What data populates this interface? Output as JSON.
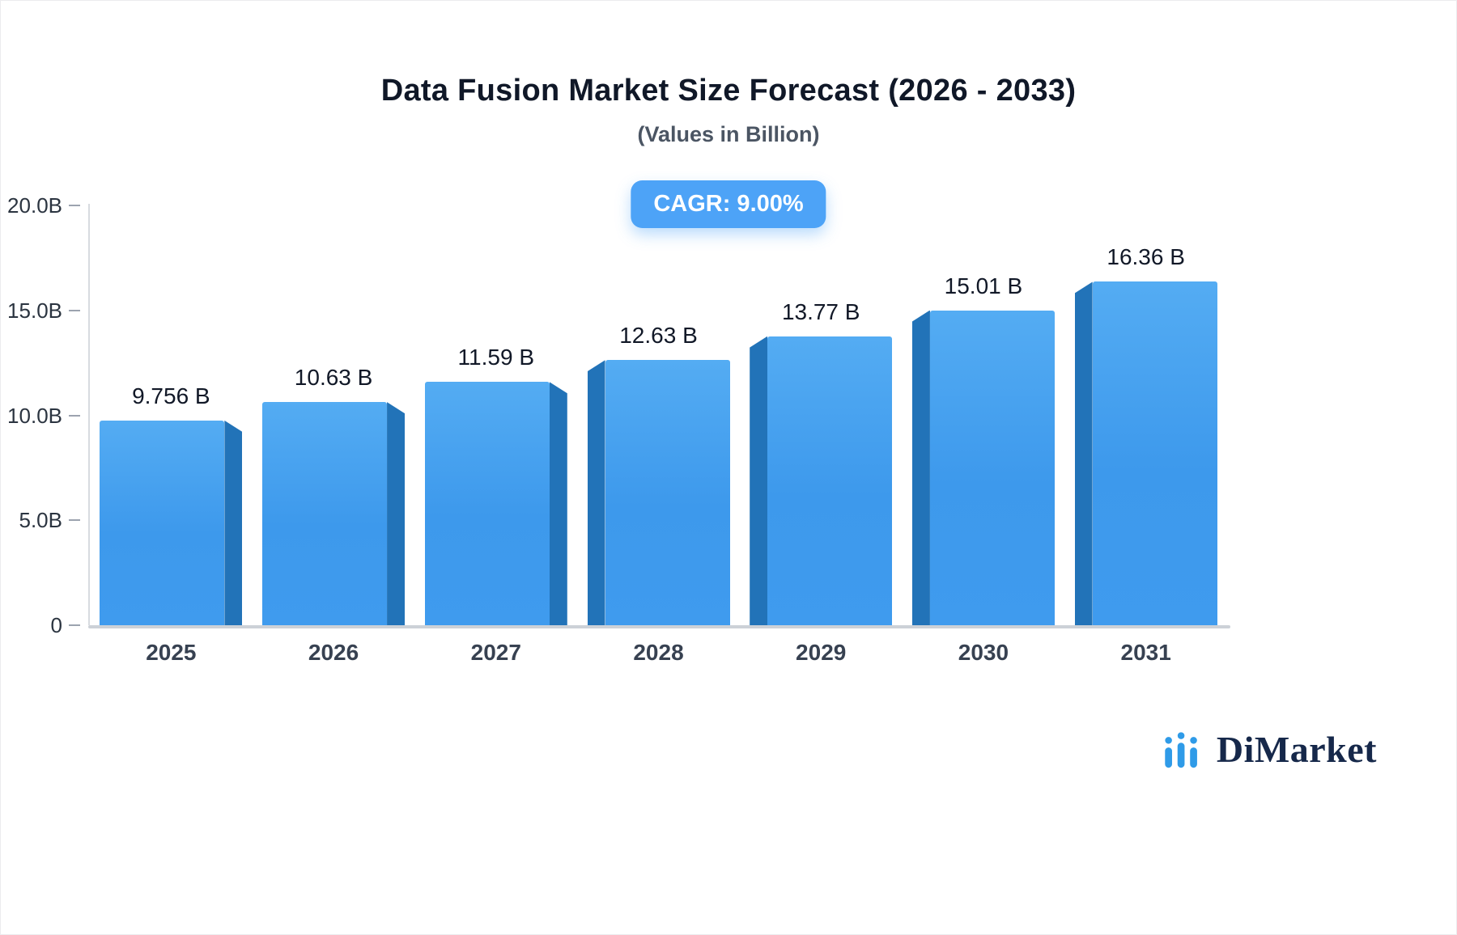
{
  "header": {
    "title": "Data Fusion Market Size Forecast (2026 - 2033)",
    "subtitle": "(Values in Billion)",
    "cagr_badge": "CAGR: 9.00%"
  },
  "branding": {
    "logo_text": "DiMarket",
    "logo_icon": "bar-chart-dots-icon",
    "logo_text_color": "#16284a",
    "logo_icon_color": "#2f9be8"
  },
  "chart_data": {
    "type": "bar",
    "title": "Data Fusion Market Size Forecast (2026 - 2033)",
    "subtitle": "(Values in Billion)",
    "annotation": "CAGR: 9.00%",
    "categories": [
      "2025",
      "2026",
      "2027",
      "2028",
      "2029",
      "2030",
      "2031"
    ],
    "values": [
      9.756,
      10.63,
      11.59,
      12.63,
      13.77,
      15.01,
      16.36
    ],
    "value_labels": [
      "9.756 B",
      "10.63 B",
      "11.59 B",
      "12.63 B",
      "13.77 B",
      "15.01 B",
      "16.36 B"
    ],
    "xlabel": "",
    "ylabel": "",
    "ylim": [
      0,
      20
    ],
    "ytick_labels": [
      "20.0B",
      "15.0B",
      "10.0B",
      "5.0B",
      "0"
    ],
    "ytick_values": [
      20,
      15,
      10,
      5,
      0
    ],
    "grid": false,
    "legend": false,
    "bar_color": "#3f9bee",
    "bar_shadow_color": "#2273b8",
    "badge_color": "#4da3f7",
    "units": "Billion"
  }
}
